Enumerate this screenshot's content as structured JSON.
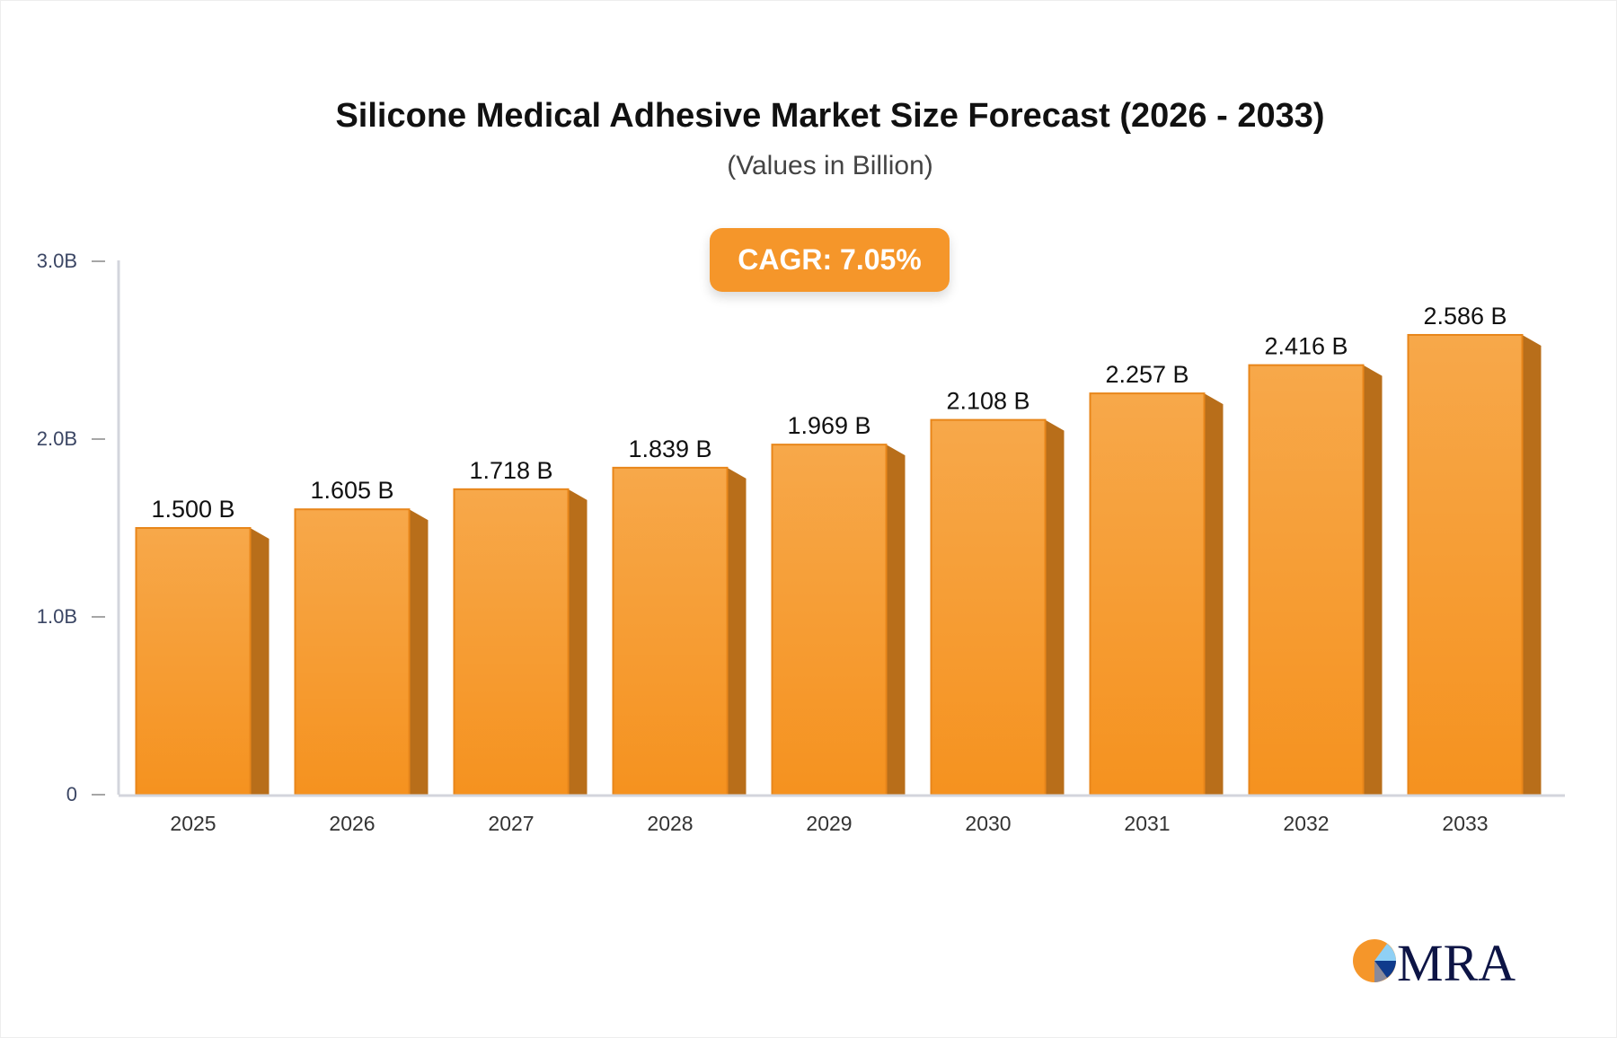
{
  "chart_data": {
    "type": "bar",
    "title": "Silicone Medical Adhesive Market Size Forecast (2026 - 2033)",
    "subtitle": "(Values in Billion)",
    "annotation": "CAGR: 7.05%",
    "categories": [
      "2025",
      "2026",
      "2027",
      "2028",
      "2029",
      "2030",
      "2031",
      "2032",
      "2033"
    ],
    "values": [
      1.5,
      1.605,
      1.718,
      1.839,
      1.969,
      2.108,
      2.257,
      2.416,
      2.586
    ],
    "data_labels": [
      "1.500 B",
      "1.605 B",
      "1.718 B",
      "1.839 B",
      "1.969 B",
      "2.108 B",
      "2.257 B",
      "2.416 B",
      "2.586 B"
    ],
    "yticks": [
      {
        "value": 0,
        "label": "0"
      },
      {
        "value": 1,
        "label": "1.0B"
      },
      {
        "value": 2,
        "label": "2.0B"
      },
      {
        "value": 3,
        "label": "3.0B"
      }
    ],
    "ylim": [
      0,
      3
    ],
    "xlabel": "",
    "ylabel": "",
    "grid": false,
    "colors": {
      "bar_front": "#f7a23e",
      "bar_side": "#b86e1a",
      "accent": "#f5962a"
    }
  },
  "logo": {
    "text": "MRA"
  }
}
